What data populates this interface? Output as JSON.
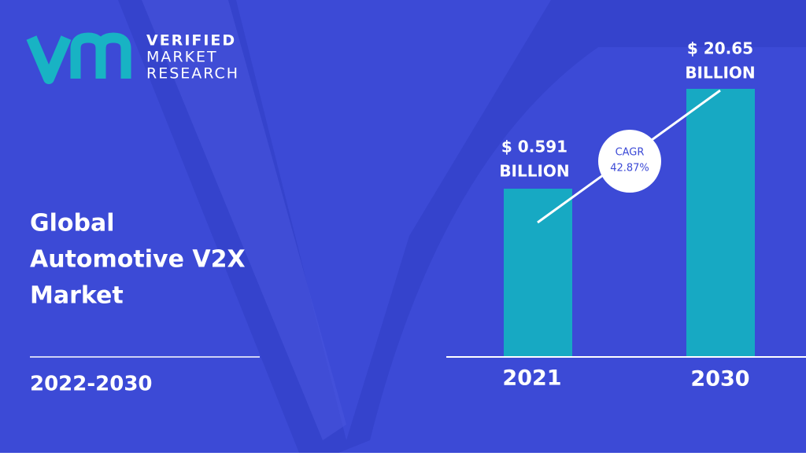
{
  "logo": {
    "line1": "VERIFIED",
    "line2": "MARKET",
    "line3": "RESEARCH"
  },
  "title": {
    "line1": "Global",
    "line2": "Automotive V2X",
    "line3": "Market"
  },
  "period": "2022-2030",
  "bars": [
    {
      "year": "2021",
      "value": "$ 0.591",
      "unit": "BILLION"
    },
    {
      "year": "2030",
      "value": "$ 20.65",
      "unit": "BILLION"
    }
  ],
  "cagr": {
    "label": "CAGR",
    "value": "42.87%"
  }
}
